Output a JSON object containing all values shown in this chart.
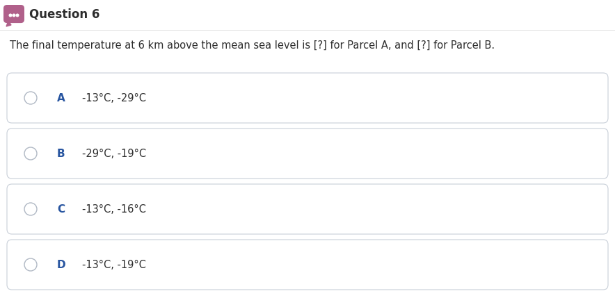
{
  "title": "Question 6",
  "question_text": "The final temperature at 6 km above the mean sea level is [?] for Parcel A, and [?] for Parcel B.",
  "options": [
    {
      "letter": "A",
      "text": "-13°C, -29°C"
    },
    {
      "letter": "B",
      "text": "-29°C, -19°C"
    },
    {
      "letter": "C",
      "text": "-13°C, -16°C"
    },
    {
      "letter": "D",
      "text": "-13°C, -19°C"
    }
  ],
  "bg_color": "#ffffff",
  "option_box_color": "#ffffff",
  "option_border_color": "#c8cfd8",
  "title_color": "#2d2d2d",
  "question_color": "#2d2d2d",
  "letter_color": "#2855a0",
  "text_color": "#2d2d2d",
  "circle_edge_color": "#b0b8c4",
  "icon_bg_color": "#b0608a",
  "icon_dot_color": "#ffffff",
  "title_fontsize": 12,
  "question_fontsize": 10.5,
  "option_fontsize": 10.5,
  "fig_width": 8.84,
  "fig_height": 4.29,
  "dpi": 100
}
